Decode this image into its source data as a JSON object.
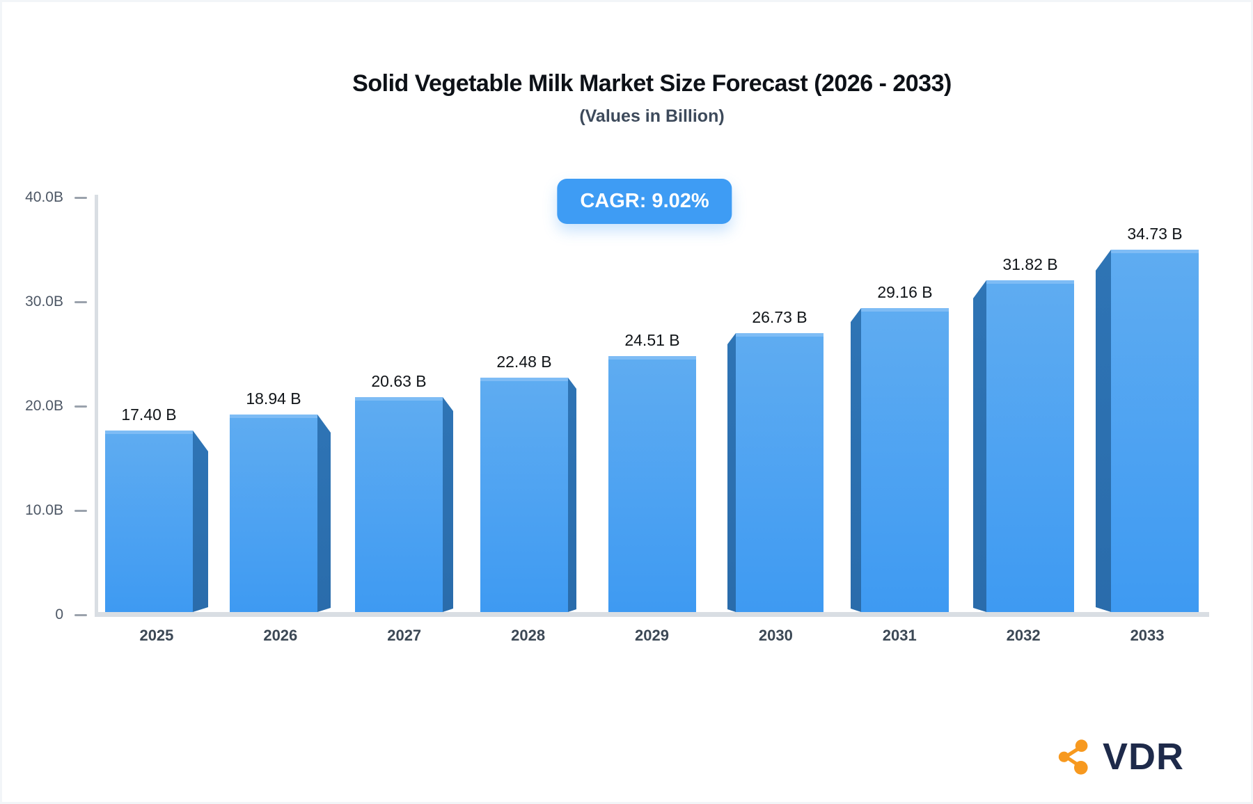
{
  "title": "Solid Vegetable Milk Market Size Forecast (2026 - 2033)",
  "subtitle": "(Values in Billion)",
  "badge": {
    "label": "CAGR: 9.02%"
  },
  "logo": {
    "text": "VDR",
    "icon": "share-network-icon",
    "icon_color": "#F7991F",
    "text_color": "#1E2A4A"
  },
  "chart_data": {
    "type": "bar",
    "title": "Solid Vegetable Milk Market Size Forecast (2026 - 2033)",
    "subtitle": "(Values in Billion)",
    "annotation": "CAGR: 9.02%",
    "categories": [
      "2025",
      "2026",
      "2027",
      "2028",
      "2029",
      "2030",
      "2031",
      "2032",
      "2033"
    ],
    "values": [
      17.4,
      18.94,
      20.63,
      22.48,
      24.51,
      26.73,
      29.16,
      31.82,
      34.73
    ],
    "bar_labels": [
      "17.40 B",
      "18.94 B",
      "20.63 B",
      "22.48 B",
      "24.51 B",
      "26.73 B",
      "29.16 B",
      "31.82 B",
      "34.73 B"
    ],
    "xlabel": "",
    "ylabel": "",
    "ylim": [
      0,
      40
    ],
    "yticks": [
      "0",
      "10.0B",
      "20.0B",
      "30.0B",
      "40.0B"
    ],
    "grid": "off",
    "legend": "none",
    "style": "3d-perspective-columns",
    "colors": {
      "bar_face_top": "#5FACF1",
      "bar_face_bottom": "#3E9AF2",
      "bar_top_cap": "#7EBCF5",
      "bar_side": "#2E74B5",
      "bar_side_dark": "#2A6CAB",
      "axis_line": "#D9DEE3",
      "tick": "#9AA2AC",
      "badge_bg": "#3E9CF4",
      "label_color": "#101418"
    }
  }
}
